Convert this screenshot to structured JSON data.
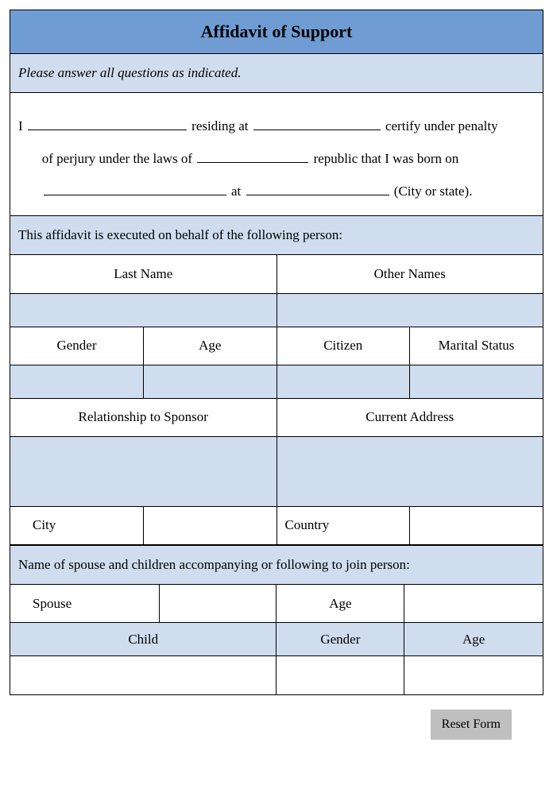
{
  "colors": {
    "header_bg": "#6f9dd3",
    "section_bg": "#d0ddef",
    "border": "#000000",
    "button_bg": "#bfbfbf",
    "page_bg": "#ffffff"
  },
  "typography": {
    "family": "Times New Roman",
    "title_size_pt": 18,
    "body_size_pt": 13
  },
  "header": {
    "title": "Affidavit of Support"
  },
  "instructions": {
    "text": "Please answer all questions as indicated."
  },
  "declaration": {
    "p1_a": "I ",
    "p1_b": " residing at ",
    "p1_c": " certify under penalty",
    "p2_a": "of perjury under the laws of ",
    "p2_b": " republic that I was born on",
    "p3_a": " at ",
    "p3_b": " (City or state).",
    "blanks": {
      "name_w": 200,
      "residing_w": 160,
      "laws_w": 140,
      "born_w": 230,
      "at_w": 180
    }
  },
  "person_section": {
    "intro": "This affidavit is executed on behalf of the following person:",
    "labels": {
      "last_name": "Last Name",
      "other_names": "Other Names",
      "gender": "Gender",
      "age": "Age",
      "citizen": "Citizen",
      "marital_status": "Marital Status",
      "relationship": "Relationship to Sponsor",
      "current_address": "Current Address",
      "city": "City",
      "country": "Country"
    }
  },
  "family_section": {
    "intro": "Name of spouse and children accompanying or following to join person:",
    "labels": {
      "spouse": "Spouse",
      "age": "Age",
      "child": "Child",
      "gender": "Gender"
    }
  },
  "button": {
    "reset": "Reset Form"
  }
}
